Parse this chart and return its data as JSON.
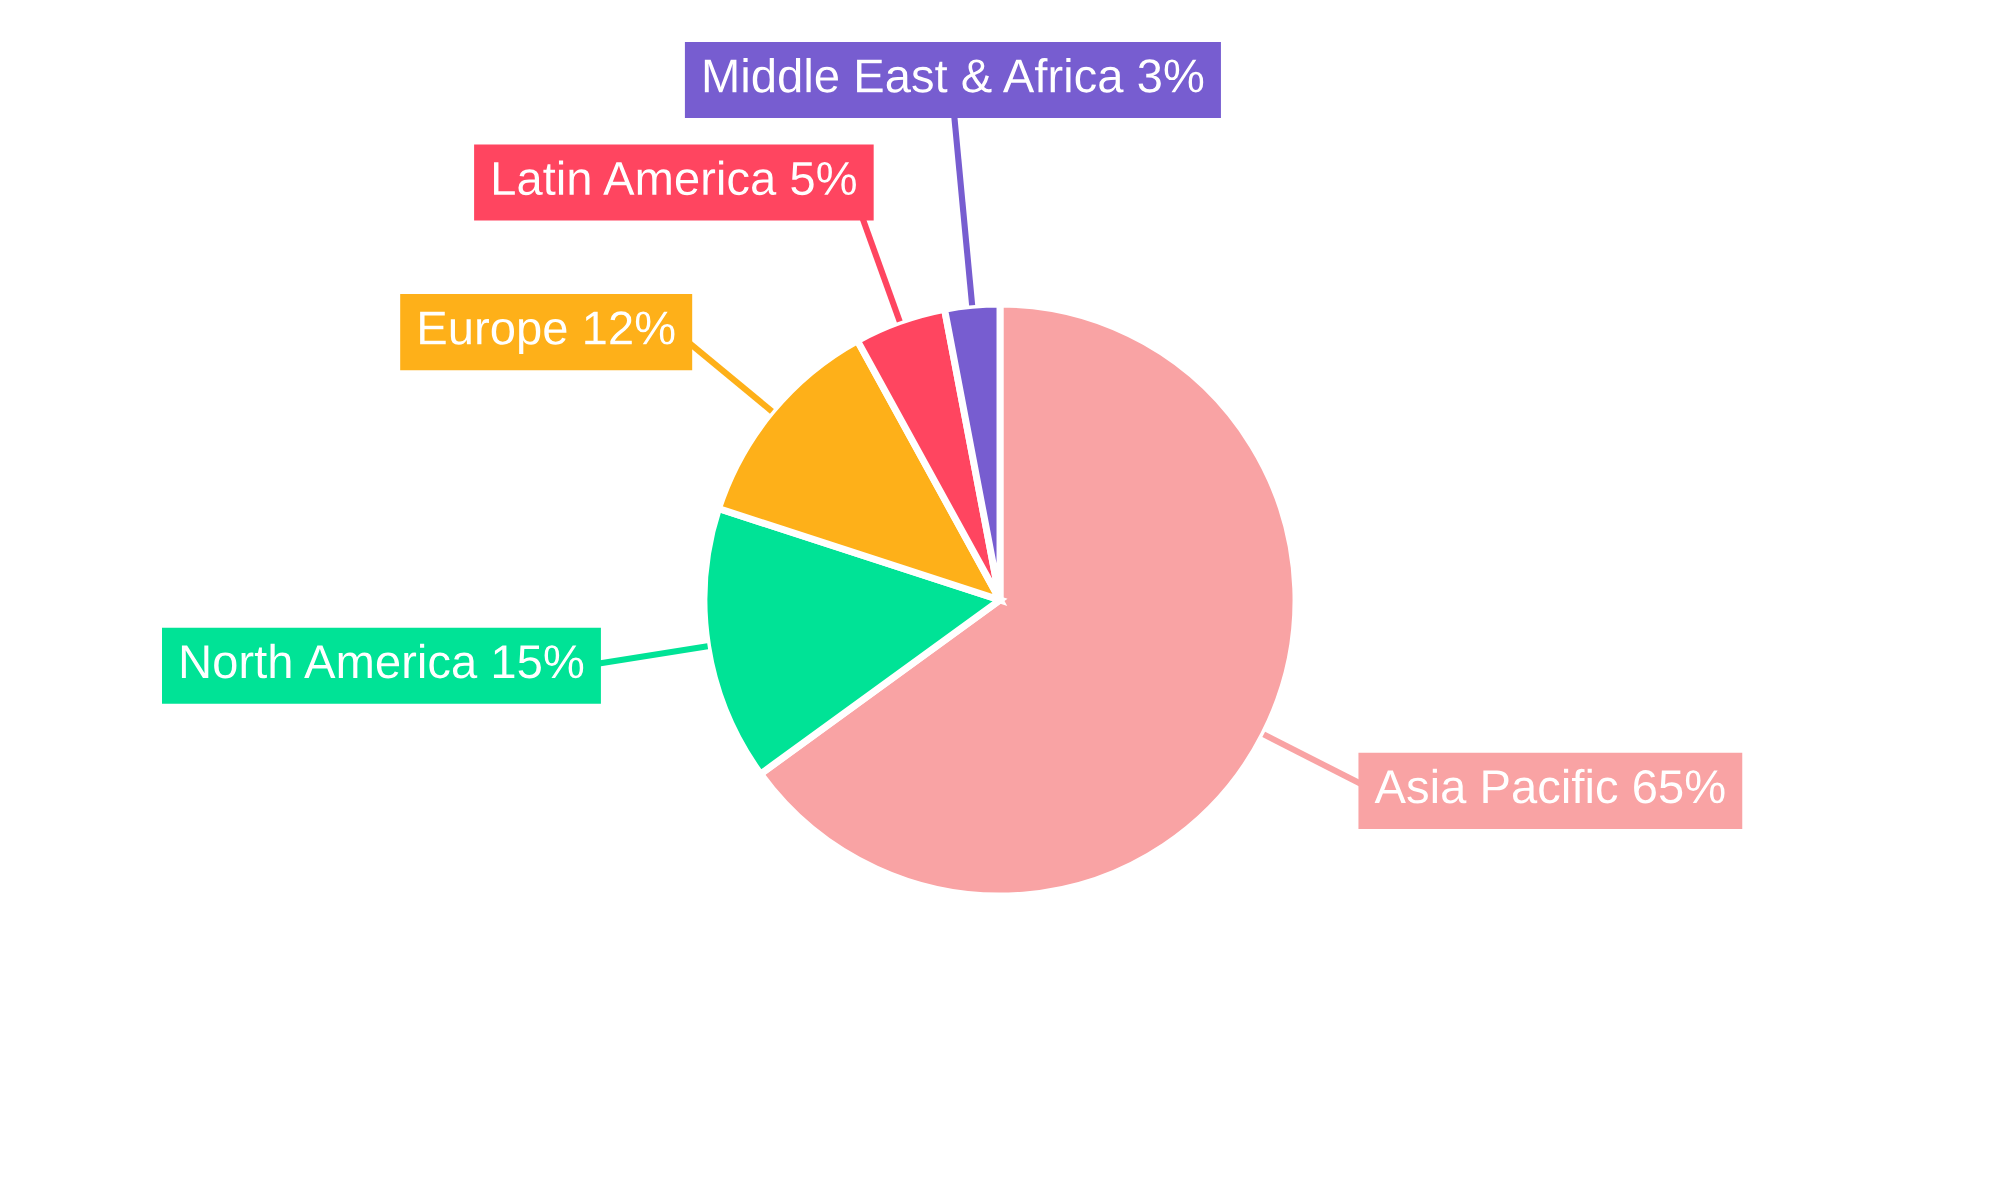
{
  "chart_data": {
    "type": "pie",
    "categories": [
      "Asia Pacific",
      "North America",
      "Europe",
      "Latin America",
      "Middle East & Africa"
    ],
    "values": [
      65,
      15,
      12,
      5,
      3
    ],
    "value_labels": [
      "65%",
      "15%",
      "12%",
      "5%",
      "3%"
    ],
    "colors": [
      "#f9a3a4",
      "#00e396",
      "#feb019",
      "#ff4560",
      "#775dd0"
    ],
    "legend": false
  }
}
